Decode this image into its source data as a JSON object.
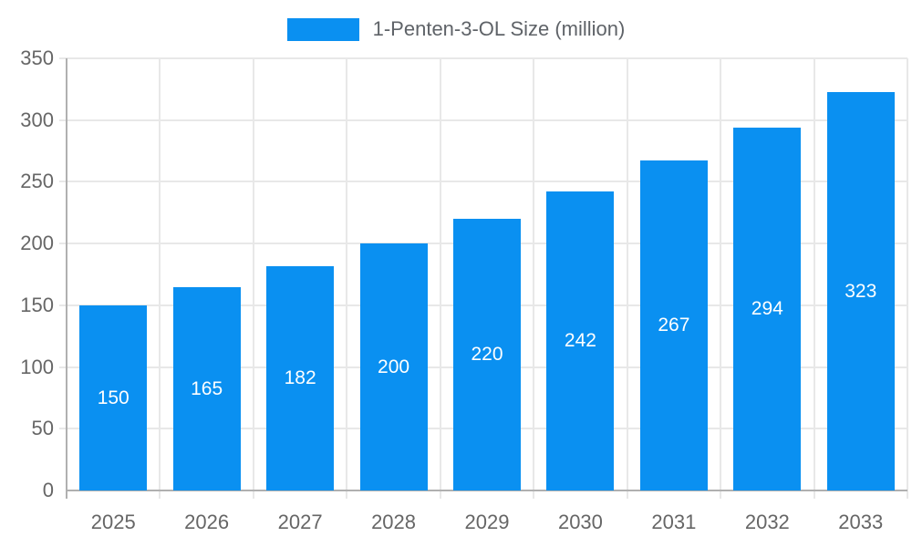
{
  "legend": {
    "label": "1-Penten-3-OL Size (million)"
  },
  "chart_data": {
    "type": "bar",
    "title": "1-Penten-3-OL Size (million)",
    "categories": [
      "2025",
      "2026",
      "2027",
      "2028",
      "2029",
      "2030",
      "2031",
      "2032",
      "2033"
    ],
    "values": [
      150,
      165,
      182,
      200,
      220,
      242,
      267,
      294,
      323
    ],
    "yticks": [
      0,
      50,
      100,
      150,
      200,
      250,
      300,
      350
    ],
    "ylim": [
      0,
      350
    ],
    "xlabel": "",
    "ylabel": "",
    "grid": true,
    "legend_position": "top-center",
    "bar_color": "#0a90f1",
    "value_label_color": "#ffffff",
    "axis_label_color": "#666666",
    "legend_text_color": "#5f6368",
    "grid_color": "#e8e8e8",
    "axis_line_color": "#b0b0b0"
  }
}
